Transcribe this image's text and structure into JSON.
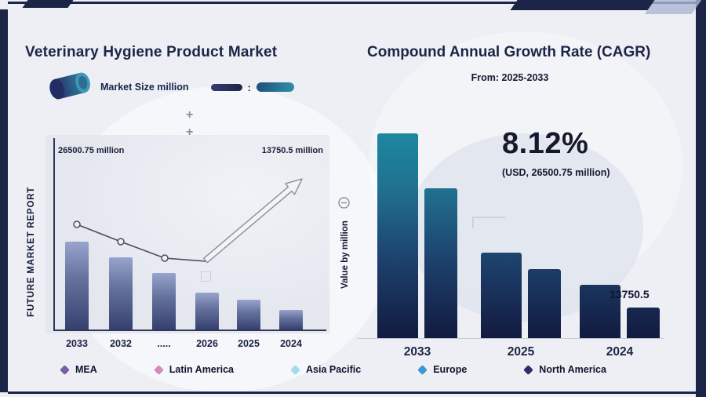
{
  "theme": {
    "background": "#edeff4",
    "navy": "#1c2547",
    "teal": "#2f8fa6",
    "bar_blue_top": "#98a4cd",
    "bar_blue_bottom": "#36406f",
    "bar_teal_top": "#1d8ba3",
    "bar_teal_bottom": "#131a40"
  },
  "decor": {
    "plus": "+"
  },
  "left_chart": {
    "title": "Veterinary Hygiene Product Market",
    "legend_label": "Market Size million",
    "legend_separator": ":",
    "y_axis_label": "FUTURE MARKET REPORT",
    "annotation_left": "26500.75 million",
    "annotation_right": "13750.5 million"
  },
  "right_chart": {
    "title": "Compound Annual Growth Rate (CAGR)",
    "subtitle": "From: 2025-2033",
    "cagr_value": "8.12%",
    "cagr_caption": "(USD, 26500.75 million)",
    "bar_callout": "13750.5",
    "y_axis_label": "Value by million"
  },
  "region_legend": [
    {
      "label": "MEA",
      "color": "#7a5fa8"
    },
    {
      "label": "Latin America",
      "color": "#d38ac0"
    },
    {
      "label": "Asia Pacific",
      "color": "#9edcee"
    },
    {
      "label": "Europe",
      "color": "#3e97d4"
    },
    {
      "label": "North America",
      "color": "#2c2e6b"
    }
  ],
  "chart_data": [
    {
      "type": "bar",
      "title": "Veterinary Hygiene Product Market",
      "ylabel": "Market Size million",
      "categories": [
        "2033",
        "2032",
        ".....",
        "2026",
        "2025",
        "2024"
      ],
      "values": [
        26500.75,
        23600,
        20700,
        17000,
        15650,
        13750.5
      ],
      "ylim": [
        13000,
        27000
      ],
      "annotations": [
        {
          "text": "26500.75 million",
          "position": "top-left"
        },
        {
          "text": "13750.5 million",
          "position": "top-right"
        }
      ],
      "trend": "marker line descending over 2033-2026 then outlined arrow rising toward top-right"
    },
    {
      "type": "bar",
      "title": "Compound Annual Growth Rate (CAGR) 8.12%",
      "ylabel": "Value by million",
      "categories": [
        "2033",
        "2025",
        "2024"
      ],
      "series": [
        {
          "values": [
            26500.75,
            17750,
            15400
          ]
        },
        {
          "values": [
            22450,
            16550,
            13750.5
          ]
        }
      ],
      "ylim": [
        11500,
        27000
      ],
      "data_label": {
        "category": "2024",
        "text": "13750.5"
      }
    }
  ]
}
